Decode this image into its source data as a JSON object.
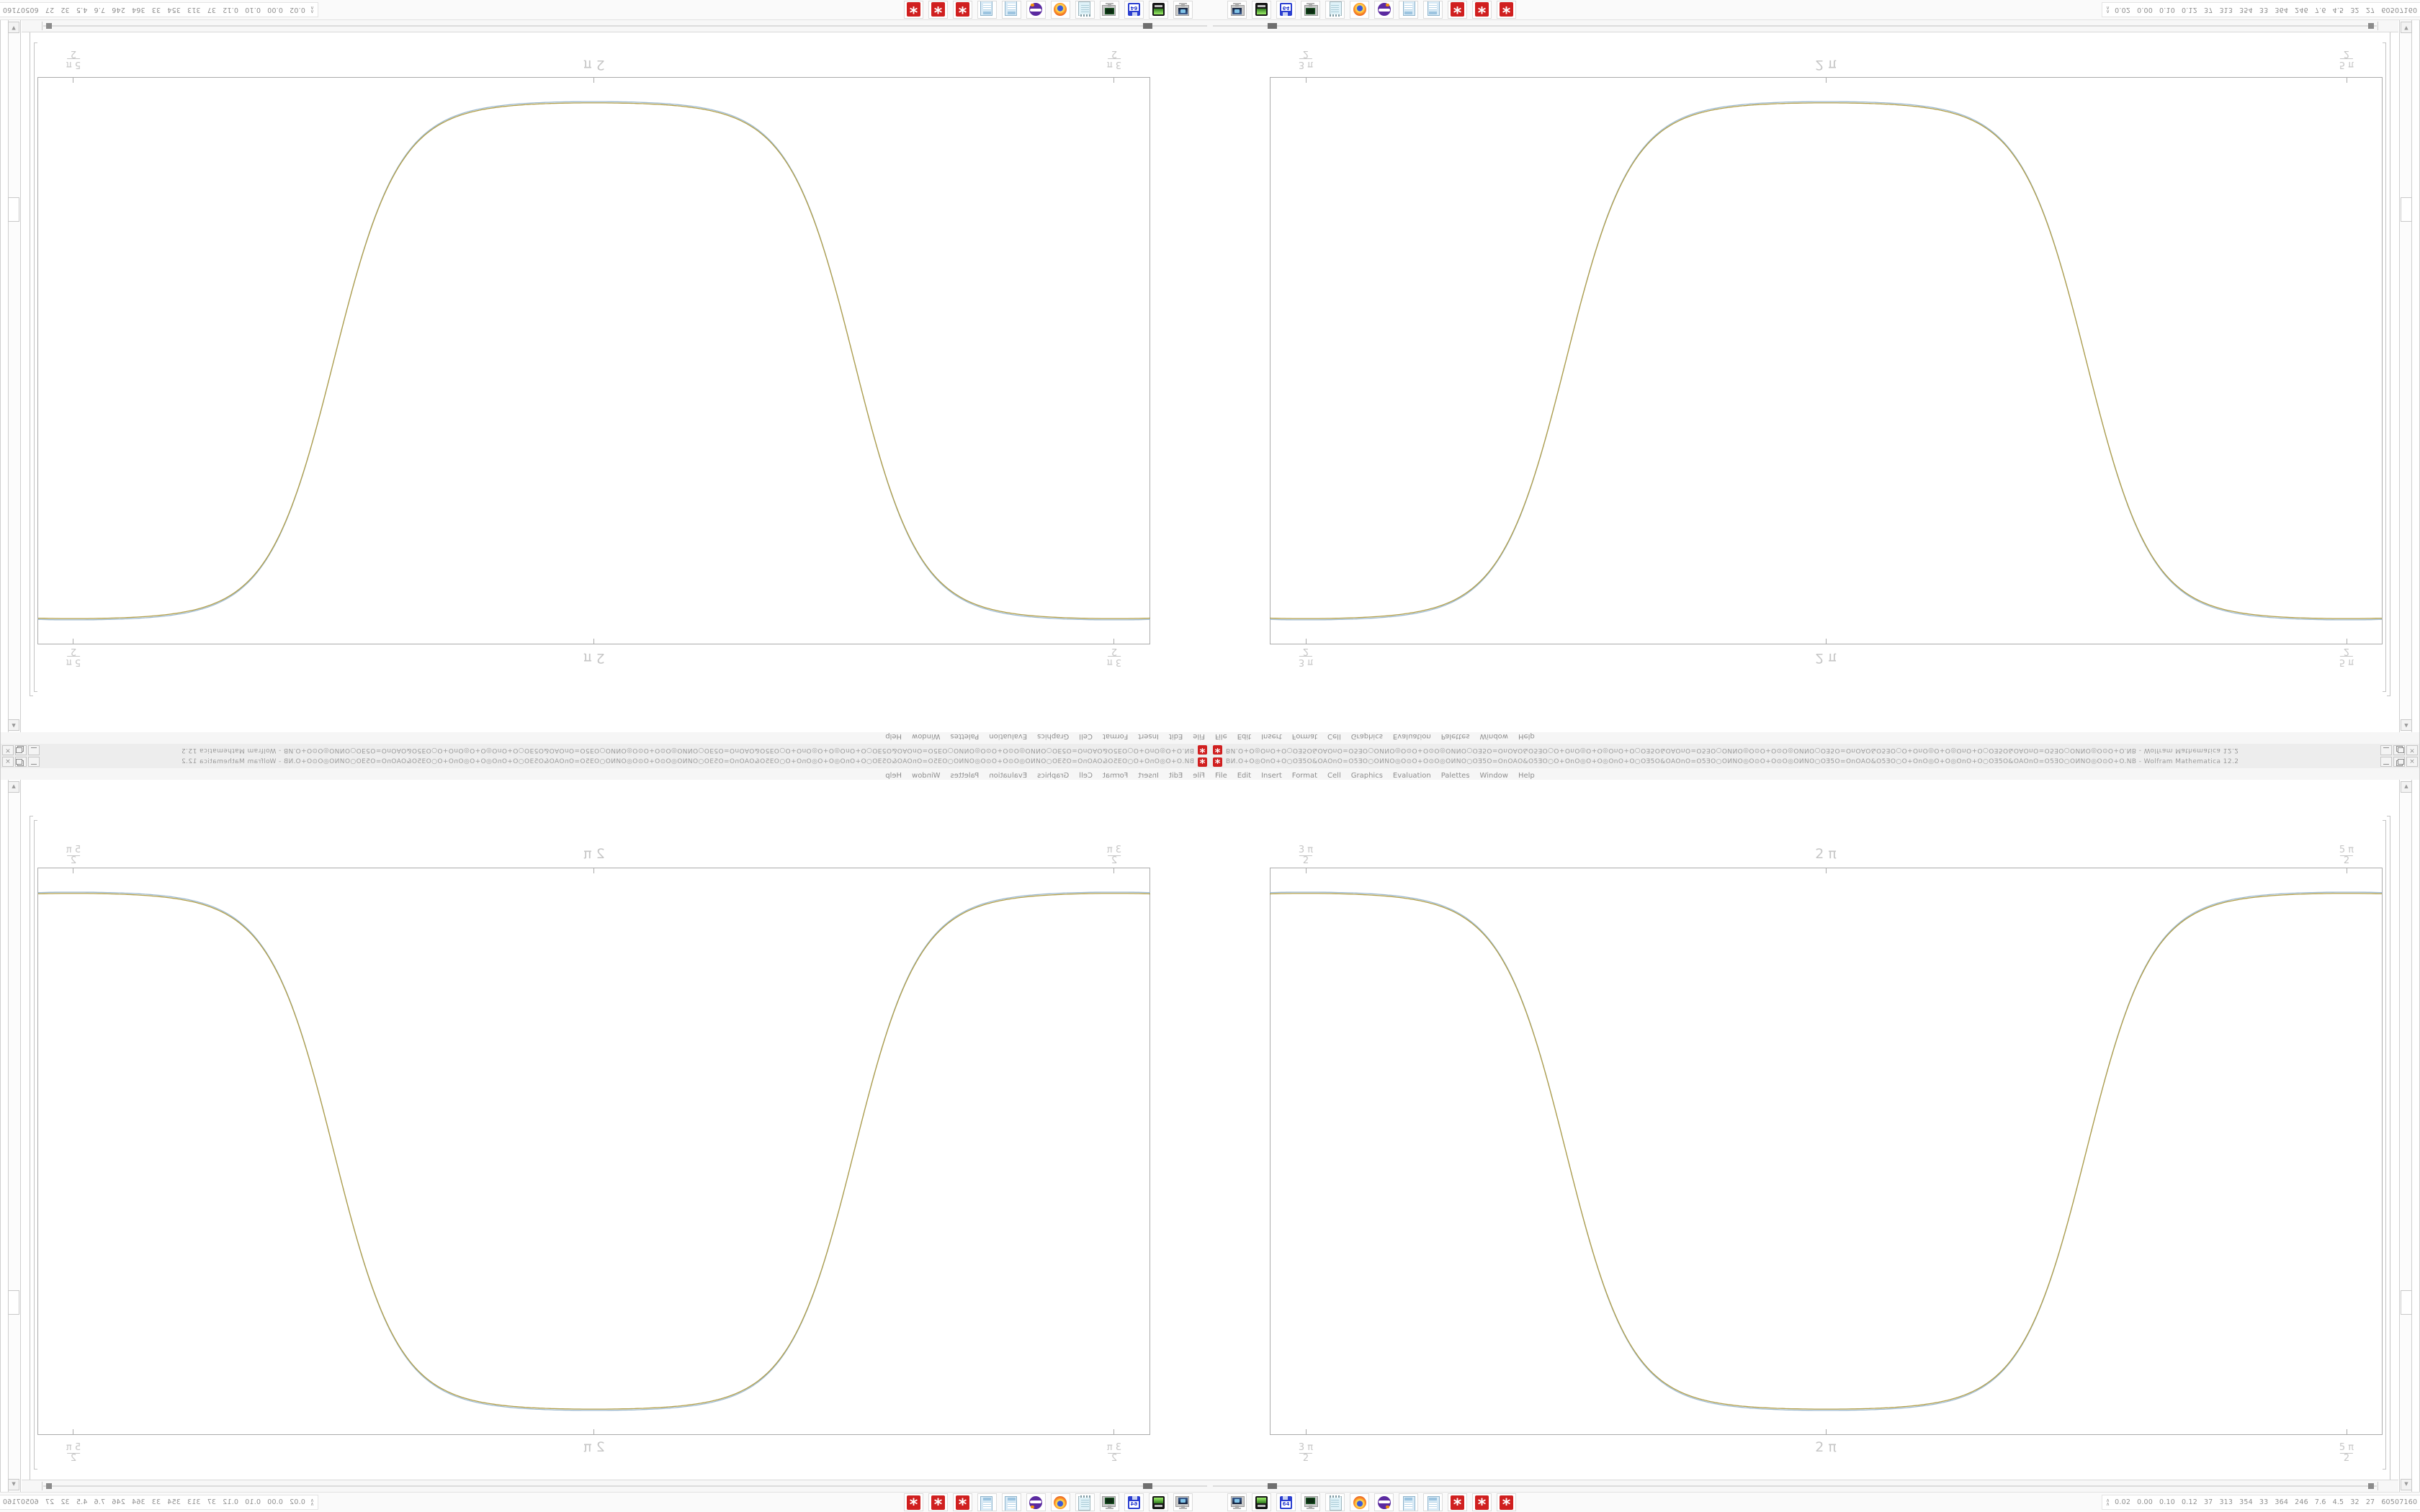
{
  "window": {
    "title_text": "BИ.O+O◎OnO+O○OƎ5O&OAOnO=O5ƎO○OИNO◎O⊙O+O⊙O◎OИNO○OƎ5O=OnOAO&O5ƎO○O+OnO◎O+O◎OnO+O○OƎ5O&OAOnO=O5ƎO○OИNO◎O⊙O+O⊙O◎OИNO○OƎ5O=OnOAO&O5ƎO○O+OnO◎O+O◎OnO+O○OƎ5O&OAOnO=O5ƎO○OИNO◎O⊙O+O.NB - Wolfram Mathematica 12.2",
    "app_icon_glyph": "*",
    "close_glyph": "×"
  },
  "menu": {
    "items": [
      "File",
      "Edit",
      "Insert",
      "Format",
      "Cell",
      "Graphics",
      "Evaluation",
      "Palettes",
      "Window",
      "Help"
    ]
  },
  "chart_data": {
    "type": "line",
    "title": "",
    "xlabel": "",
    "ylabel": "",
    "x_tick_labels": [
      "3π/2",
      "2π",
      "5π/2"
    ],
    "x_tick_values": [
      4.712,
      6.283,
      7.854
    ],
    "tick_label_sides": [
      "top",
      "bottom"
    ],
    "frame": true,
    "grid": false,
    "legend": "none",
    "xlim": [
      4.604,
      7.963
    ],
    "ylim": [
      -1.08,
      1.08
    ],
    "series": [
      {
        "name": "smoothed-square-wave",
        "color": "#9cb9d0",
        "formula": "y = -tanh(2.5·cos(2(x-2π)))",
        "gain": 2.5,
        "amplitude": 1.0,
        "points": [
          [
            4.712,
            0.99
          ],
          [
            5.105,
            0.94
          ],
          [
            5.498,
            0.0
          ],
          [
            5.89,
            -0.94
          ],
          [
            6.283,
            -0.99
          ],
          [
            6.676,
            -0.94
          ],
          [
            7.069,
            0.0
          ],
          [
            7.461,
            0.94
          ],
          [
            7.854,
            0.99
          ]
        ]
      },
      {
        "name": "smoothed-square-wave-scaled",
        "color": "#b19e48",
        "formula": "y = -0.995·tanh(2.5·cos(2(x-2π)))",
        "gain": 2.5,
        "amplitude": 0.995,
        "points": [
          [
            4.712,
            0.98
          ],
          [
            5.105,
            0.93
          ],
          [
            5.498,
            0.0
          ],
          [
            5.89,
            -0.93
          ],
          [
            6.283,
            -0.98
          ],
          [
            6.676,
            -0.93
          ],
          [
            7.069,
            0.0
          ],
          [
            7.461,
            0.93
          ],
          [
            7.854,
            0.98
          ]
        ]
      }
    ]
  },
  "plot": {
    "axis_labels": [
      {
        "numerator": "3 π",
        "denominator": "2"
      },
      {
        "text": "2 π"
      },
      {
        "numerator": "5 π",
        "denominator": "2"
      }
    ],
    "frame_color": "#ababab",
    "label_color": "#c6c6c6"
  },
  "scrollbars": {
    "up_glyph": "▲",
    "down_glyph": "▼"
  },
  "taskbar": {
    "icons": [
      {
        "name": "monitor-settings",
        "type": "monitor-blue"
      },
      {
        "name": "green-drive",
        "type": "drive-green"
      },
      {
        "name": "floppy-64",
        "type": "floppy",
        "label": "64"
      },
      {
        "name": "terminal-monitor",
        "type": "monitor-green"
      },
      {
        "name": "notepad",
        "type": "note"
      },
      {
        "name": "firefox",
        "type": "firefox"
      },
      {
        "name": "purple-mascot",
        "type": "purple"
      },
      {
        "name": "calculator-1",
        "type": "calc"
      },
      {
        "name": "calculator-2",
        "type": "calc"
      },
      {
        "name": "mathematica-1",
        "type": "mma",
        "label": "*"
      },
      {
        "name": "mathematica-2",
        "type": "mma",
        "label": "*"
      },
      {
        "name": "mathematica-3",
        "type": "mma",
        "label": "*"
      }
    ],
    "status": {
      "chevron_glyph": "∧",
      "values": [
        "0.02",
        "0.00",
        "0.10",
        "0.12",
        "37",
        "313",
        "354",
        "33",
        "364",
        "246",
        "7.6",
        "4.5",
        "32",
        "27",
        "60507160"
      ],
      "graph_colors": {
        "yellow_strip": "#eef02e",
        "green_strip": "#6abf3a",
        "purple_bars": "#5b2d91",
        "yellow_candle": "#e8e82a",
        "brown_box": "#a8500f",
        "green_dots": "#3fae3f"
      }
    }
  }
}
